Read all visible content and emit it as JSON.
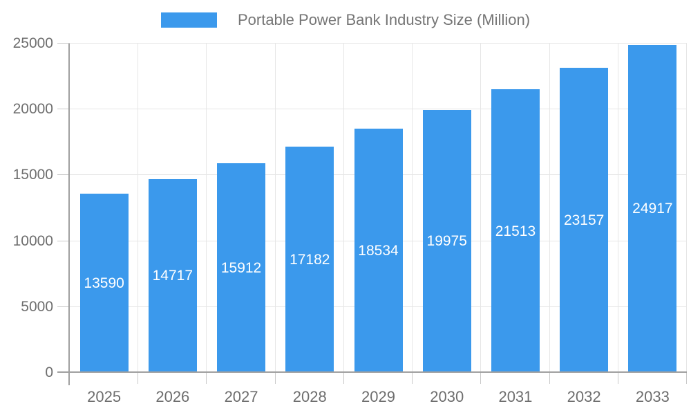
{
  "legend": {
    "label": "Portable Power Bank Industry Size (Million)"
  },
  "chart_data": {
    "type": "bar",
    "title": "Portable Power Bank Industry Size (Million)",
    "categories": [
      "2025",
      "2026",
      "2027",
      "2028",
      "2029",
      "2030",
      "2031",
      "2032",
      "2033"
    ],
    "values": [
      13590,
      14717,
      15912,
      17182,
      18534,
      19975,
      21513,
      23157,
      24917
    ],
    "value_labels": [
      "13590",
      "14717",
      "15912",
      "17182",
      "18534",
      "19975",
      "21513",
      "23157",
      "24917"
    ],
    "xlabel": "",
    "ylabel": "",
    "ylim": [
      0,
      25000
    ],
    "yticks": [
      0,
      5000,
      10000,
      15000,
      20000,
      25000
    ],
    "ytick_labels": [
      "0",
      "5000",
      "10000",
      "15000",
      "20000",
      "25000"
    ],
    "grid": true,
    "legend_position": "top-center",
    "value_label_position": "inside-center"
  },
  "colors": {
    "bar": "#3B99EC",
    "legend_text": "#757575",
    "axis_text": "#6e6e6e",
    "gridline": "#e6e6e6",
    "tick": "#c9c9c9",
    "axis_line": "#a0a0a0",
    "value_text": "#ffffff",
    "background": "#ffffff"
  }
}
